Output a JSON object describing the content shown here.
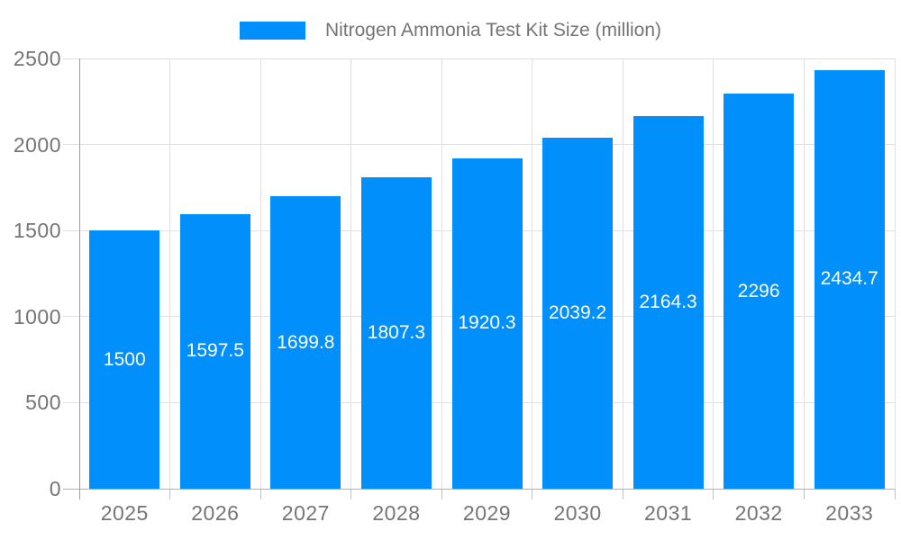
{
  "chart_data": {
    "type": "bar",
    "legend": "Nitrogen Ammonia Test Kit Size (million)",
    "categories": [
      "2025",
      "2026",
      "2027",
      "2028",
      "2029",
      "2030",
      "2031",
      "2032",
      "2033"
    ],
    "values": [
      1500,
      1597.5,
      1699.8,
      1807.3,
      1920.3,
      2039.2,
      2164.3,
      2296,
      2434.7
    ],
    "value_labels": [
      "1500",
      "1597.5",
      "1699.8",
      "1807.3",
      "1920.3",
      "2039.2",
      "2164.3",
      "2296",
      "2434.7"
    ],
    "xlabel": "",
    "ylabel": "",
    "ylim": [
      0,
      2500
    ],
    "yticks": [
      0,
      500,
      1000,
      1500,
      2000,
      2500
    ],
    "grid": true,
    "legend_position": "top-center",
    "bar_color": "#008FFB",
    "bar_label_color": "#ffffff",
    "axis_text_color": "#757575",
    "gridline_color": "#e0e0e0",
    "axis_line_color": "#9e9e9e"
  }
}
